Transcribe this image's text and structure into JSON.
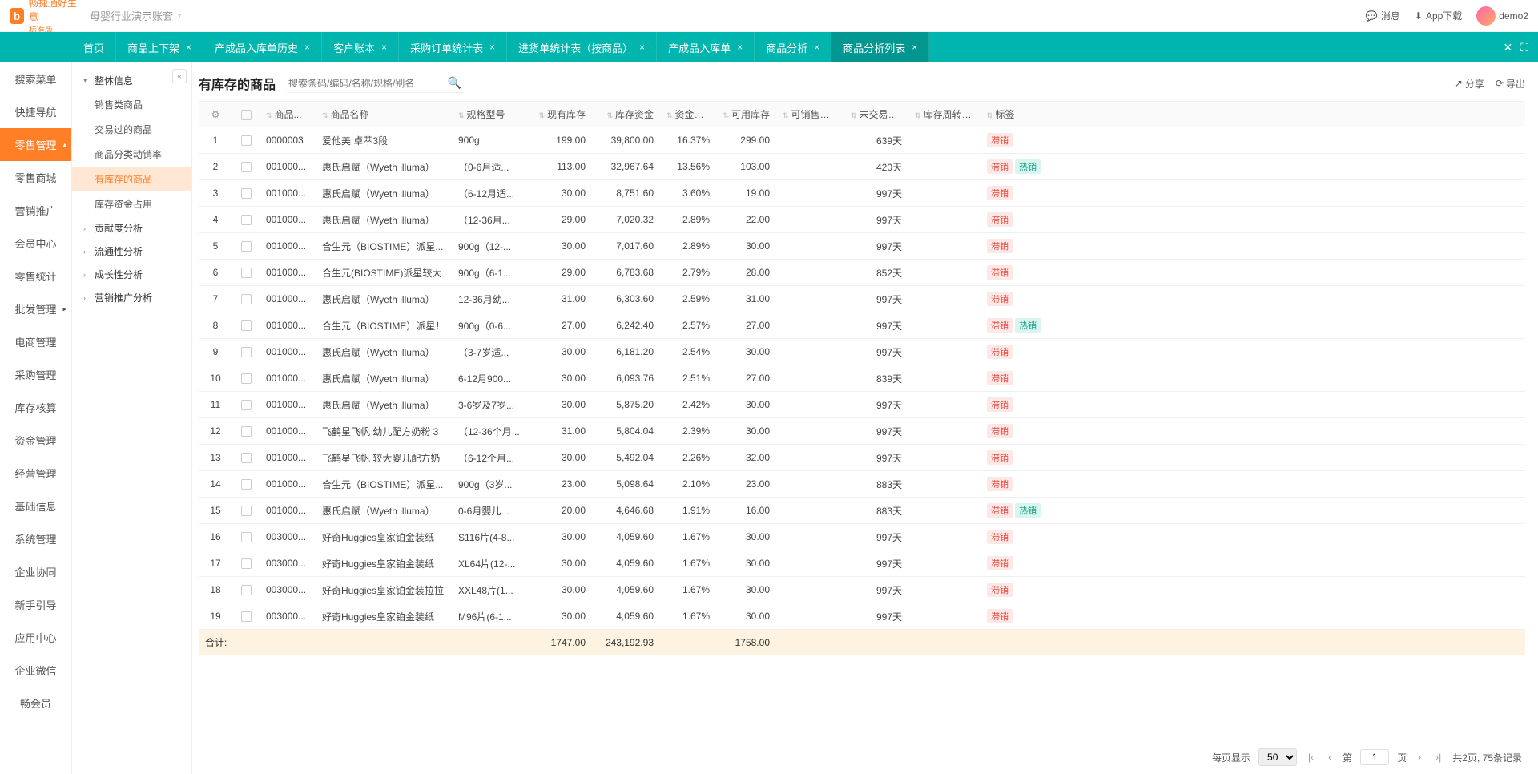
{
  "header": {
    "logo_text": "畅捷通好生意",
    "edition": "标准版",
    "account_name": "母婴行业演示账套",
    "message": "消息",
    "app_download": "App下载",
    "user_name": "demo2"
  },
  "tabs": [
    {
      "label": "首页",
      "closable": false
    },
    {
      "label": "商品上下架",
      "closable": true
    },
    {
      "label": "产成品入库单历史",
      "closable": true
    },
    {
      "label": "客户账本",
      "closable": true
    },
    {
      "label": "采购订单统计表",
      "closable": true
    },
    {
      "label": "进货单统计表（按商品）",
      "closable": true
    },
    {
      "label": "产成品入库单",
      "closable": true
    },
    {
      "label": "商品分析",
      "closable": true
    },
    {
      "label": "商品分析列表",
      "closable": true,
      "active": true
    }
  ],
  "left_nav": [
    {
      "label": "搜索菜单"
    },
    {
      "label": "快捷导航"
    },
    {
      "label": "零售管理",
      "active": true,
      "expandable": true
    },
    {
      "label": "零售商城"
    },
    {
      "label": "营销推广"
    },
    {
      "label": "会员中心"
    },
    {
      "label": "零售统计"
    },
    {
      "label": "批发管理",
      "expandable": true
    },
    {
      "label": "电商管理"
    },
    {
      "label": "采购管理"
    },
    {
      "label": "库存核算"
    },
    {
      "label": "资金管理"
    },
    {
      "label": "经营管理"
    },
    {
      "label": "基础信息"
    },
    {
      "label": "系统管理"
    },
    {
      "label": "企业协同"
    },
    {
      "label": "新手引导"
    },
    {
      "label": "应用中心"
    },
    {
      "label": "企业微信"
    },
    {
      "label": "畅会员"
    }
  ],
  "sec_nav": {
    "group0": {
      "label": "整体信息",
      "expanded": true,
      "items": [
        {
          "label": "销售类商品"
        },
        {
          "label": "交易过的商品"
        },
        {
          "label": "商品分类动销率"
        },
        {
          "label": "有库存的商品",
          "active": true
        },
        {
          "label": "库存资金占用"
        }
      ]
    },
    "groups_rest": [
      {
        "label": "贡献度分析"
      },
      {
        "label": "流通性分析"
      },
      {
        "label": "成长性分析"
      },
      {
        "label": "营销推广分析"
      }
    ]
  },
  "main": {
    "title": "有库存的商品",
    "search_placeholder": "搜索条码/编码/名称/规格/别名",
    "share": "分享",
    "export": "导出"
  },
  "table": {
    "columns": [
      "",
      "",
      "商品...",
      "商品名称",
      "规格型号",
      "现有库存",
      "库存资金",
      "资金占比",
      "可用库存",
      "可销售天数",
      "未交易天数",
      "库存周转天数",
      "标签"
    ],
    "rows": [
      {
        "idx": "1",
        "code": "0000003",
        "name": "爱他美 卓萃3段",
        "spec": "900g",
        "stock": "199.00",
        "fund": "39,800.00",
        "ratio": "16.37%",
        "avail": "299.00",
        "sellable": "",
        "notrade": "639天",
        "turnover": "",
        "tags": [
          "滞销"
        ]
      },
      {
        "idx": "2",
        "code": "001000...",
        "name": "惠氏启赋（Wyeth illuma）",
        "spec": "（0-6月适...",
        "stock": "113.00",
        "fund": "32,967.64",
        "ratio": "13.56%",
        "avail": "103.00",
        "sellable": "",
        "notrade": "420天",
        "turnover": "",
        "tags": [
          "滞销",
          "热销"
        ]
      },
      {
        "idx": "3",
        "code": "001000...",
        "name": "惠氏启赋（Wyeth illuma）",
        "spec": "（6-12月适...",
        "stock": "30.00",
        "fund": "8,751.60",
        "ratio": "3.60%",
        "avail": "19.00",
        "sellable": "",
        "notrade": "997天",
        "turnover": "",
        "tags": [
          "滞销"
        ]
      },
      {
        "idx": "4",
        "code": "001000...",
        "name": "惠氏启赋（Wyeth illuma）",
        "spec": "（12-36月...",
        "stock": "29.00",
        "fund": "7,020.32",
        "ratio": "2.89%",
        "avail": "22.00",
        "sellable": "",
        "notrade": "997天",
        "turnover": "",
        "tags": [
          "滞销"
        ]
      },
      {
        "idx": "5",
        "code": "001000...",
        "name": "合生元（BIOSTIME）派星...",
        "spec": "900g（12-...",
        "stock": "30.00",
        "fund": "7,017.60",
        "ratio": "2.89%",
        "avail": "30.00",
        "sellable": "",
        "notrade": "997天",
        "turnover": "",
        "tags": [
          "滞销"
        ]
      },
      {
        "idx": "6",
        "code": "001000...",
        "name": "合生元(BIOSTIME)派星较大",
        "spec": "900g（6-1...",
        "stock": "29.00",
        "fund": "6,783.68",
        "ratio": "2.79%",
        "avail": "28.00",
        "sellable": "",
        "notrade": "852天",
        "turnover": "",
        "tags": [
          "滞销"
        ]
      },
      {
        "idx": "7",
        "code": "001000...",
        "name": "惠氏启赋（Wyeth illuma）",
        "spec": "12-36月幼...",
        "stock": "31.00",
        "fund": "6,303.60",
        "ratio": "2.59%",
        "avail": "31.00",
        "sellable": "",
        "notrade": "997天",
        "turnover": "",
        "tags": [
          "滞销"
        ]
      },
      {
        "idx": "8",
        "code": "001000...",
        "name": "合生元（BIOSTIME）派星！",
        "spec": "900g（0-6...",
        "stock": "27.00",
        "fund": "6,242.40",
        "ratio": "2.57%",
        "avail": "27.00",
        "sellable": "",
        "notrade": "997天",
        "turnover": "",
        "tags": [
          "滞销",
          "热销"
        ]
      },
      {
        "idx": "9",
        "code": "001000...",
        "name": "惠氏启赋（Wyeth illuma）",
        "spec": "（3-7岁适...",
        "stock": "30.00",
        "fund": "6,181.20",
        "ratio": "2.54%",
        "avail": "30.00",
        "sellable": "",
        "notrade": "997天",
        "turnover": "",
        "tags": [
          "滞销"
        ]
      },
      {
        "idx": "10",
        "code": "001000...",
        "name": "惠氏启赋（Wyeth illuma）",
        "spec": "6-12月900...",
        "stock": "30.00",
        "fund": "6,093.76",
        "ratio": "2.51%",
        "avail": "27.00",
        "sellable": "",
        "notrade": "839天",
        "turnover": "",
        "tags": [
          "滞销"
        ]
      },
      {
        "idx": "11",
        "code": "001000...",
        "name": "惠氏启赋（Wyeth illuma）",
        "spec": "3-6岁及7岁...",
        "stock": "30.00",
        "fund": "5,875.20",
        "ratio": "2.42%",
        "avail": "30.00",
        "sellable": "",
        "notrade": "997天",
        "turnover": "",
        "tags": [
          "滞销"
        ]
      },
      {
        "idx": "12",
        "code": "001000...",
        "name": "飞鹤星飞帆 幼儿配方奶粉 3",
        "spec": "（12-36个月...",
        "stock": "31.00",
        "fund": "5,804.04",
        "ratio": "2.39%",
        "avail": "30.00",
        "sellable": "",
        "notrade": "997天",
        "turnover": "",
        "tags": [
          "滞销"
        ]
      },
      {
        "idx": "13",
        "code": "001000...",
        "name": "飞鹤星飞帆 较大婴儿配方奶",
        "spec": "（6-12个月...",
        "stock": "30.00",
        "fund": "5,492.04",
        "ratio": "2.26%",
        "avail": "32.00",
        "sellable": "",
        "notrade": "997天",
        "turnover": "",
        "tags": [
          "滞销"
        ]
      },
      {
        "idx": "14",
        "code": "001000...",
        "name": "合生元（BIOSTIME）派星...",
        "spec": "900g（3岁...",
        "stock": "23.00",
        "fund": "5,098.64",
        "ratio": "2.10%",
        "avail": "23.00",
        "sellable": "",
        "notrade": "883天",
        "turnover": "",
        "tags": [
          "滞销"
        ]
      },
      {
        "idx": "15",
        "code": "001000...",
        "name": "惠氏启赋（Wyeth illuma）",
        "spec": "0-6月婴儿...",
        "stock": "20.00",
        "fund": "4,646.68",
        "ratio": "1.91%",
        "avail": "16.00",
        "sellable": "",
        "notrade": "883天",
        "turnover": "",
        "tags": [
          "滞销",
          "热销"
        ]
      },
      {
        "idx": "16",
        "code": "003000...",
        "name": "好奇Huggies皇家铂金装纸",
        "spec": "S116片(4-8...",
        "stock": "30.00",
        "fund": "4,059.60",
        "ratio": "1.67%",
        "avail": "30.00",
        "sellable": "",
        "notrade": "997天",
        "turnover": "",
        "tags": [
          "滞销"
        ]
      },
      {
        "idx": "17",
        "code": "003000...",
        "name": "好奇Huggies皇家铂金装纸",
        "spec": "XL64片(12-...",
        "stock": "30.00",
        "fund": "4,059.60",
        "ratio": "1.67%",
        "avail": "30.00",
        "sellable": "",
        "notrade": "997天",
        "turnover": "",
        "tags": [
          "滞销"
        ]
      },
      {
        "idx": "18",
        "code": "003000...",
        "name": "好奇Huggies皇家铂金装拉拉",
        "spec": "XXL48片(1...",
        "stock": "30.00",
        "fund": "4,059.60",
        "ratio": "1.67%",
        "avail": "30.00",
        "sellable": "",
        "notrade": "997天",
        "turnover": "",
        "tags": [
          "滞销"
        ]
      },
      {
        "idx": "19",
        "code": "003000...",
        "name": "好奇Huggies皇家铂金装纸",
        "spec": "M96片(6-1...",
        "stock": "30.00",
        "fund": "4,059.60",
        "ratio": "1.67%",
        "avail": "30.00",
        "sellable": "",
        "notrade": "997天",
        "turnover": "",
        "tags": [
          "滞销"
        ]
      }
    ],
    "total": {
      "label": "合计:",
      "stock": "1747.00",
      "fund": "243,192.93",
      "avail": "1758.00"
    }
  },
  "pagination": {
    "page_size_label": "每页显示",
    "page_size": "50",
    "page_label_prefix": "第",
    "page_current": "1",
    "page_label_suffix": "页",
    "summary": "共2页, 75条记录"
  }
}
